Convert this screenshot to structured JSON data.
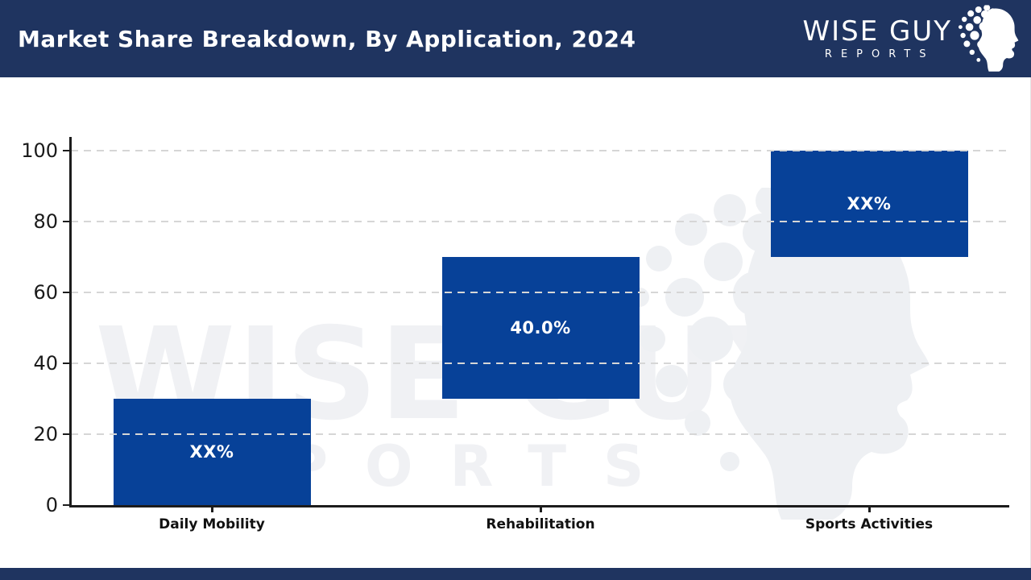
{
  "header": {
    "title": "Market Share Breakdown, By Application, 2024",
    "logo": {
      "wordmark": "WISE GUY",
      "subtext": "REPORTS"
    }
  },
  "watermark": {
    "line1": "WISE GUY",
    "line2": "REPORTS"
  },
  "chart_data": {
    "type": "bar",
    "subtype": "floating-range-bars (waterfall style, no connectors)",
    "title": "Market Share Breakdown, By Application, 2024",
    "categories": [
      "Daily Mobility",
      "Rehabilitation",
      "Sports Activities"
    ],
    "series": [
      {
        "name": "Market Share (%)",
        "ranges": [
          [
            0,
            30
          ],
          [
            30,
            70
          ],
          [
            70,
            100
          ]
        ],
        "bar_labels": [
          "XX%",
          "40.0%",
          "XX%"
        ]
      }
    ],
    "xlabel": "",
    "ylabel": "",
    "ylim": [
      0,
      104
    ],
    "yticks": [
      0,
      20,
      40,
      60,
      80,
      100
    ],
    "grid": "horizontal dashed gridlines at each ytick",
    "legend_position": "none",
    "colors": {
      "bar": "#074198",
      "bar_label": "#ffffff",
      "axis": "#1c1c1c",
      "gridline": "#d6d6d6",
      "header_bg": "#1f3460",
      "footer_bg": "#1f3460",
      "watermark": "#f0f1f4"
    }
  }
}
